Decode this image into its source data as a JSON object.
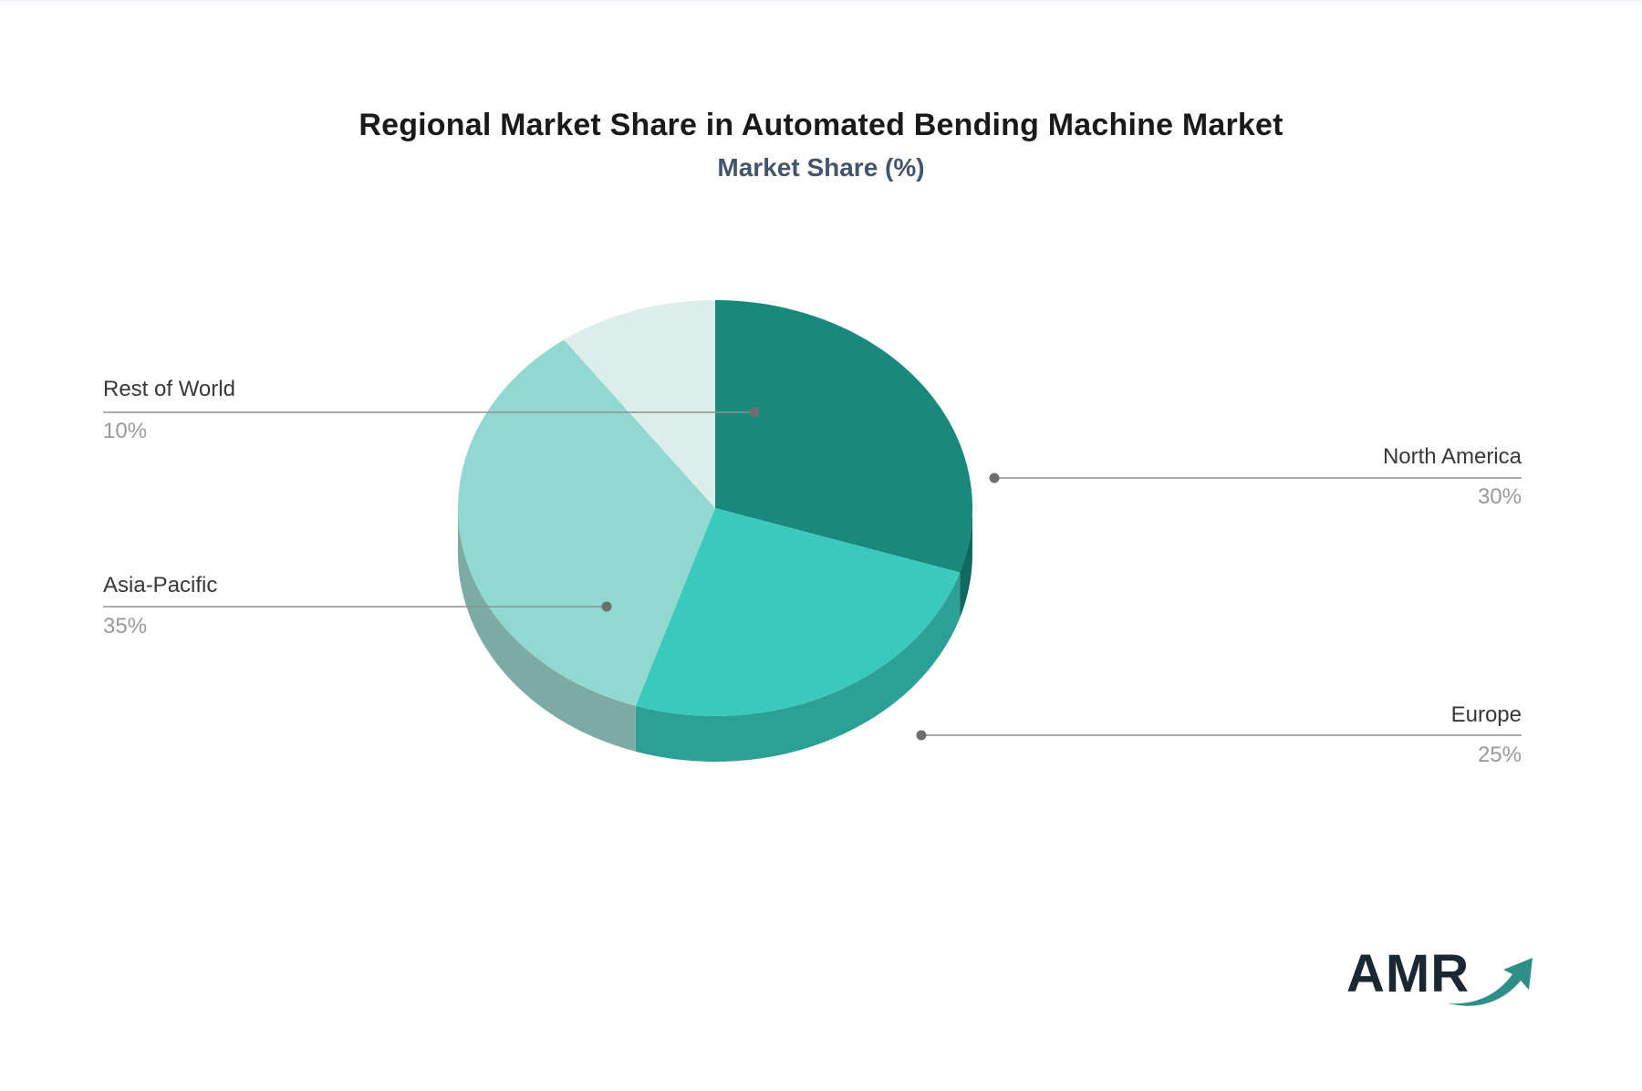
{
  "page": {
    "background": "#ffffff"
  },
  "chart_data": {
    "type": "pie",
    "style": "3d",
    "title": "Regional Market Share in Automated Bending Machine Market",
    "subtitle": "Market Share (%)",
    "unit": "%",
    "start_angle_deg": 0,
    "direction": "clockwise",
    "legend_position": "none",
    "labels_style": "leader-lines",
    "slices": [
      {
        "label": "North America",
        "value": 30,
        "display": "30%",
        "color": "#19897d",
        "side_color": "#10685e"
      },
      {
        "label": "Europe",
        "value": 25,
        "display": "25%",
        "color": "#3bc9bc",
        "side_color": "#2da095"
      },
      {
        "label": "Asia-Pacific",
        "value": 35,
        "display": "35%",
        "color": "#90d8d0",
        "side_color": "#7caaa4"
      },
      {
        "label": "Rest of World",
        "value": 10,
        "display": "10%",
        "color": "#ddeeea",
        "side_color": "#b5cfc9"
      }
    ]
  },
  "branding": {
    "logo_text": "AMR",
    "logo_color": "#1b2733",
    "logo_accent": "#2e8f88"
  },
  "colors": {
    "title": "#1a1a1a",
    "subtitle": "#44546a",
    "label_text": "#383838",
    "percent_text": "#9a9a9a",
    "leader_line": "#8f8f8f",
    "leader_dot": "#6e6e6e"
  }
}
